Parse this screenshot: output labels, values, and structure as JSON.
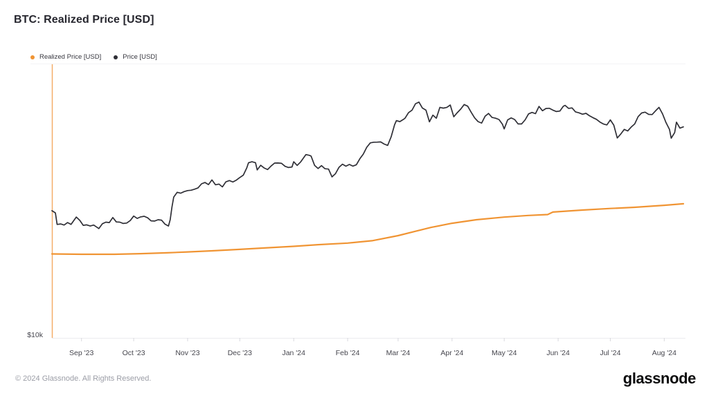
{
  "page": {
    "title": "BTC: Realized Price [USD]"
  },
  "legend": [
    {
      "label": "Realized Price [USD]",
      "color": "#f09433"
    },
    {
      "label": "Price [USD]",
      "color": "#2f2f36"
    }
  ],
  "footer": {
    "copyright": "© 2024 Glassnode. All Rights Reserved.",
    "brand": "glassnode"
  },
  "chart_data": {
    "type": "line",
    "title": "BTC: Realized Price [USD]",
    "x_range": [
      "2023-08-15",
      "2024-08-12"
    ],
    "y_scale": "log",
    "y_domain": [
      10000,
      100000
    ],
    "grid": false,
    "legend_position": "top-left",
    "y_tick_labels": [
      {
        "value": 10000,
        "label": "$10k"
      }
    ],
    "x_tick_labels": [
      {
        "date": "2023-09-01",
        "label": "Sep '23"
      },
      {
        "date": "2023-10-01",
        "label": "Oct '23"
      },
      {
        "date": "2023-11-01",
        "label": "Nov '23"
      },
      {
        "date": "2023-12-01",
        "label": "Dec '23"
      },
      {
        "date": "2024-01-01",
        "label": "Jan '24"
      },
      {
        "date": "2024-02-01",
        "label": "Feb '24"
      },
      {
        "date": "2024-03-01",
        "label": "Mar '24"
      },
      {
        "date": "2024-04-01",
        "label": "Apr '24"
      },
      {
        "date": "2024-05-01",
        "label": "May '24"
      },
      {
        "date": "2024-06-01",
        "label": "Jun '24"
      },
      {
        "date": "2024-07-01",
        "label": "Jul '24"
      },
      {
        "date": "2024-08-01",
        "label": "Aug '24"
      }
    ],
    "colors": {
      "divider": "#f2f2f5",
      "x_axis": "#ebebee",
      "y_axis": "#f4ad68",
      "tick": "#d9d9de",
      "label": "#45454d"
    },
    "series": [
      {
        "id": "realized-price",
        "name": "Realized Price [USD]",
        "color": "#f09433",
        "width": 2.2,
        "points": [
          [
            "2023-08-15",
            20300
          ],
          [
            "2023-09-01",
            20250
          ],
          [
            "2023-09-20",
            20250
          ],
          [
            "2023-10-05",
            20350
          ],
          [
            "2023-10-20",
            20500
          ],
          [
            "2023-11-01",
            20650
          ],
          [
            "2023-11-15",
            20850
          ],
          [
            "2023-12-01",
            21100
          ],
          [
            "2023-12-15",
            21350
          ],
          [
            "2024-01-01",
            21650
          ],
          [
            "2024-01-15",
            21950
          ],
          [
            "2024-02-01",
            22250
          ],
          [
            "2024-02-15",
            22700
          ],
          [
            "2024-03-01",
            23700
          ],
          [
            "2024-03-10",
            24500
          ],
          [
            "2024-03-20",
            25400
          ],
          [
            "2024-04-01",
            26300
          ],
          [
            "2024-04-15",
            27100
          ],
          [
            "2024-05-01",
            27700
          ],
          [
            "2024-05-15",
            28100
          ],
          [
            "2024-05-26",
            28300
          ],
          [
            "2024-05-29",
            28900
          ],
          [
            "2024-06-15",
            29400
          ],
          [
            "2024-07-01",
            29800
          ],
          [
            "2024-07-15",
            30100
          ],
          [
            "2024-08-01",
            30600
          ],
          [
            "2024-08-12",
            31000
          ]
        ]
      },
      {
        "id": "price",
        "name": "Price [USD]",
        "color": "#2f2f36",
        "width": 1.7,
        "points": [
          [
            "2023-08-15",
            29250
          ],
          [
            "2023-08-17",
            28700
          ],
          [
            "2023-08-18",
            26050
          ],
          [
            "2023-08-20",
            26150
          ],
          [
            "2023-08-22",
            25900
          ],
          [
            "2023-08-24",
            26450
          ],
          [
            "2023-08-26",
            26050
          ],
          [
            "2023-08-29",
            27720
          ],
          [
            "2023-08-31",
            26950
          ],
          [
            "2023-09-02",
            25850
          ],
          [
            "2023-09-04",
            25950
          ],
          [
            "2023-09-06",
            25700
          ],
          [
            "2023-09-08",
            25900
          ],
          [
            "2023-09-11",
            25150
          ],
          [
            "2023-09-13",
            26200
          ],
          [
            "2023-09-15",
            26550
          ],
          [
            "2023-09-17",
            26450
          ],
          [
            "2023-09-19",
            27600
          ],
          [
            "2023-09-21",
            26600
          ],
          [
            "2023-09-23",
            26550
          ],
          [
            "2023-09-25",
            26250
          ],
          [
            "2023-09-27",
            26350
          ],
          [
            "2023-09-29",
            26900
          ],
          [
            "2023-10-01",
            27950
          ],
          [
            "2023-10-03",
            27400
          ],
          [
            "2023-10-05",
            27750
          ],
          [
            "2023-10-07",
            27900
          ],
          [
            "2023-10-09",
            27550
          ],
          [
            "2023-10-11",
            26850
          ],
          [
            "2023-10-13",
            26800
          ],
          [
            "2023-10-15",
            27100
          ],
          [
            "2023-10-17",
            27000
          ],
          [
            "2023-10-19",
            26100
          ],
          [
            "2023-10-21",
            25700
          ],
          [
            "2023-10-22",
            27100
          ],
          [
            "2023-10-23",
            30200
          ],
          [
            "2023-10-24",
            32800
          ],
          [
            "2023-10-26",
            34150
          ],
          [
            "2023-10-28",
            33900
          ],
          [
            "2023-10-30",
            34350
          ],
          [
            "2023-11-01",
            34650
          ],
          [
            "2023-11-03",
            34750
          ],
          [
            "2023-11-05",
            35050
          ],
          [
            "2023-11-07",
            35450
          ],
          [
            "2023-11-09",
            36700
          ],
          [
            "2023-11-11",
            37100
          ],
          [
            "2023-11-13",
            36450
          ],
          [
            "2023-11-15",
            37900
          ],
          [
            "2023-11-17",
            36400
          ],
          [
            "2023-11-19",
            36600
          ],
          [
            "2023-11-21",
            35750
          ],
          [
            "2023-11-23",
            37300
          ],
          [
            "2023-11-25",
            37720
          ],
          [
            "2023-11-27",
            37250
          ],
          [
            "2023-11-29",
            37850
          ],
          [
            "2023-12-01",
            38700
          ],
          [
            "2023-12-03",
            39470
          ],
          [
            "2023-12-05",
            41950
          ],
          [
            "2023-12-06",
            43800
          ],
          [
            "2023-12-08",
            44200
          ],
          [
            "2023-12-10",
            43850
          ],
          [
            "2023-12-11",
            41250
          ],
          [
            "2023-12-13",
            42900
          ],
          [
            "2023-12-15",
            41940
          ],
          [
            "2023-12-17",
            41370
          ],
          [
            "2023-12-19",
            42650
          ],
          [
            "2023-12-21",
            43700
          ],
          [
            "2023-12-23",
            43720
          ],
          [
            "2023-12-25",
            43600
          ],
          [
            "2023-12-27",
            42520
          ],
          [
            "2023-12-29",
            42100
          ],
          [
            "2023-12-31",
            42280
          ],
          [
            "2024-01-01",
            44200
          ],
          [
            "2024-01-03",
            42850
          ],
          [
            "2024-01-05",
            44150
          ],
          [
            "2024-01-08",
            46950
          ],
          [
            "2024-01-10",
            46650
          ],
          [
            "2024-01-11",
            46350
          ],
          [
            "2024-01-13",
            42850
          ],
          [
            "2024-01-15",
            41730
          ],
          [
            "2024-01-17",
            42780
          ],
          [
            "2024-01-19",
            41660
          ],
          [
            "2024-01-21",
            41550
          ],
          [
            "2024-01-23",
            38900
          ],
          [
            "2024-01-25",
            39950
          ],
          [
            "2024-01-27",
            42120
          ],
          [
            "2024-01-29",
            43300
          ],
          [
            "2024-01-31",
            42580
          ],
          [
            "2024-02-02",
            43190
          ],
          [
            "2024-02-04",
            42600
          ],
          [
            "2024-02-06",
            43100
          ],
          [
            "2024-02-08",
            45300
          ],
          [
            "2024-02-10",
            47150
          ],
          [
            "2024-02-12",
            49950
          ],
          [
            "2024-02-14",
            51800
          ],
          [
            "2024-02-16",
            52100
          ],
          [
            "2024-02-18",
            52150
          ],
          [
            "2024-02-20",
            52250
          ],
          [
            "2024-02-22",
            51300
          ],
          [
            "2024-02-24",
            50750
          ],
          [
            "2024-02-26",
            54500
          ],
          [
            "2024-02-28",
            60400
          ],
          [
            "2024-02-29",
            62500
          ],
          [
            "2024-03-02",
            62000
          ],
          [
            "2024-03-04",
            63150
          ],
          [
            "2024-03-05",
            63800
          ],
          [
            "2024-03-07",
            66850
          ],
          [
            "2024-03-09",
            68300
          ],
          [
            "2024-03-11",
            72100
          ],
          [
            "2024-03-13",
            73100
          ],
          [
            "2024-03-15",
            69500
          ],
          [
            "2024-03-17",
            68300
          ],
          [
            "2024-03-19",
            61900
          ],
          [
            "2024-03-21",
            65500
          ],
          [
            "2024-03-23",
            63800
          ],
          [
            "2024-03-25",
            69900
          ],
          [
            "2024-03-27",
            69450
          ],
          [
            "2024-03-29",
            69900
          ],
          [
            "2024-03-31",
            71300
          ],
          [
            "2024-04-02",
            64600
          ],
          [
            "2024-04-04",
            66850
          ],
          [
            "2024-04-06",
            68900
          ],
          [
            "2024-04-08",
            71600
          ],
          [
            "2024-04-10",
            70600
          ],
          [
            "2024-04-12",
            67100
          ],
          [
            "2024-04-14",
            64000
          ],
          [
            "2024-04-16",
            62000
          ],
          [
            "2024-04-18",
            61250
          ],
          [
            "2024-04-20",
            64900
          ],
          [
            "2024-04-22",
            66400
          ],
          [
            "2024-04-24",
            64250
          ],
          [
            "2024-04-26",
            63800
          ],
          [
            "2024-04-28",
            63100
          ],
          [
            "2024-04-30",
            60600
          ],
          [
            "2024-05-01",
            58300
          ],
          [
            "2024-05-03",
            62900
          ],
          [
            "2024-05-05",
            64000
          ],
          [
            "2024-05-07",
            63100
          ],
          [
            "2024-05-09",
            60800
          ],
          [
            "2024-05-11",
            60800
          ],
          [
            "2024-05-13",
            62900
          ],
          [
            "2024-05-15",
            66200
          ],
          [
            "2024-05-17",
            67000
          ],
          [
            "2024-05-19",
            66300
          ],
          [
            "2024-05-21",
            70500
          ],
          [
            "2024-05-23",
            67950
          ],
          [
            "2024-05-25",
            69250
          ],
          [
            "2024-05-27",
            69400
          ],
          [
            "2024-05-29",
            68300
          ],
          [
            "2024-05-31",
            67500
          ],
          [
            "2024-06-02",
            67800
          ],
          [
            "2024-06-04",
            70550
          ],
          [
            "2024-06-05",
            71100
          ],
          [
            "2024-06-07",
            69300
          ],
          [
            "2024-06-09",
            69600
          ],
          [
            "2024-06-11",
            67300
          ],
          [
            "2024-06-13",
            66750
          ],
          [
            "2024-06-15",
            66000
          ],
          [
            "2024-06-17",
            66500
          ],
          [
            "2024-06-19",
            65150
          ],
          [
            "2024-06-21",
            64100
          ],
          [
            "2024-06-23",
            63200
          ],
          [
            "2024-06-25",
            61800
          ],
          [
            "2024-06-27",
            60800
          ],
          [
            "2024-06-29",
            60300
          ],
          [
            "2024-07-01",
            62900
          ],
          [
            "2024-07-03",
            60200
          ],
          [
            "2024-07-05",
            54000
          ],
          [
            "2024-07-07",
            55850
          ],
          [
            "2024-07-09",
            58050
          ],
          [
            "2024-07-11",
            57300
          ],
          [
            "2024-07-13",
            59200
          ],
          [
            "2024-07-15",
            60800
          ],
          [
            "2024-07-17",
            64700
          ],
          [
            "2024-07-19",
            66700
          ],
          [
            "2024-07-21",
            67160
          ],
          [
            "2024-07-23",
            65900
          ],
          [
            "2024-07-25",
            65800
          ],
          [
            "2024-07-27",
            67900
          ],
          [
            "2024-07-29",
            69900
          ],
          [
            "2024-07-31",
            66200
          ],
          [
            "2024-08-02",
            61500
          ],
          [
            "2024-08-04",
            58100
          ],
          [
            "2024-08-05",
            53900
          ],
          [
            "2024-08-07",
            56500
          ],
          [
            "2024-08-08",
            61700
          ],
          [
            "2024-08-10",
            58700
          ],
          [
            "2024-08-12",
            59300
          ]
        ]
      }
    ]
  }
}
